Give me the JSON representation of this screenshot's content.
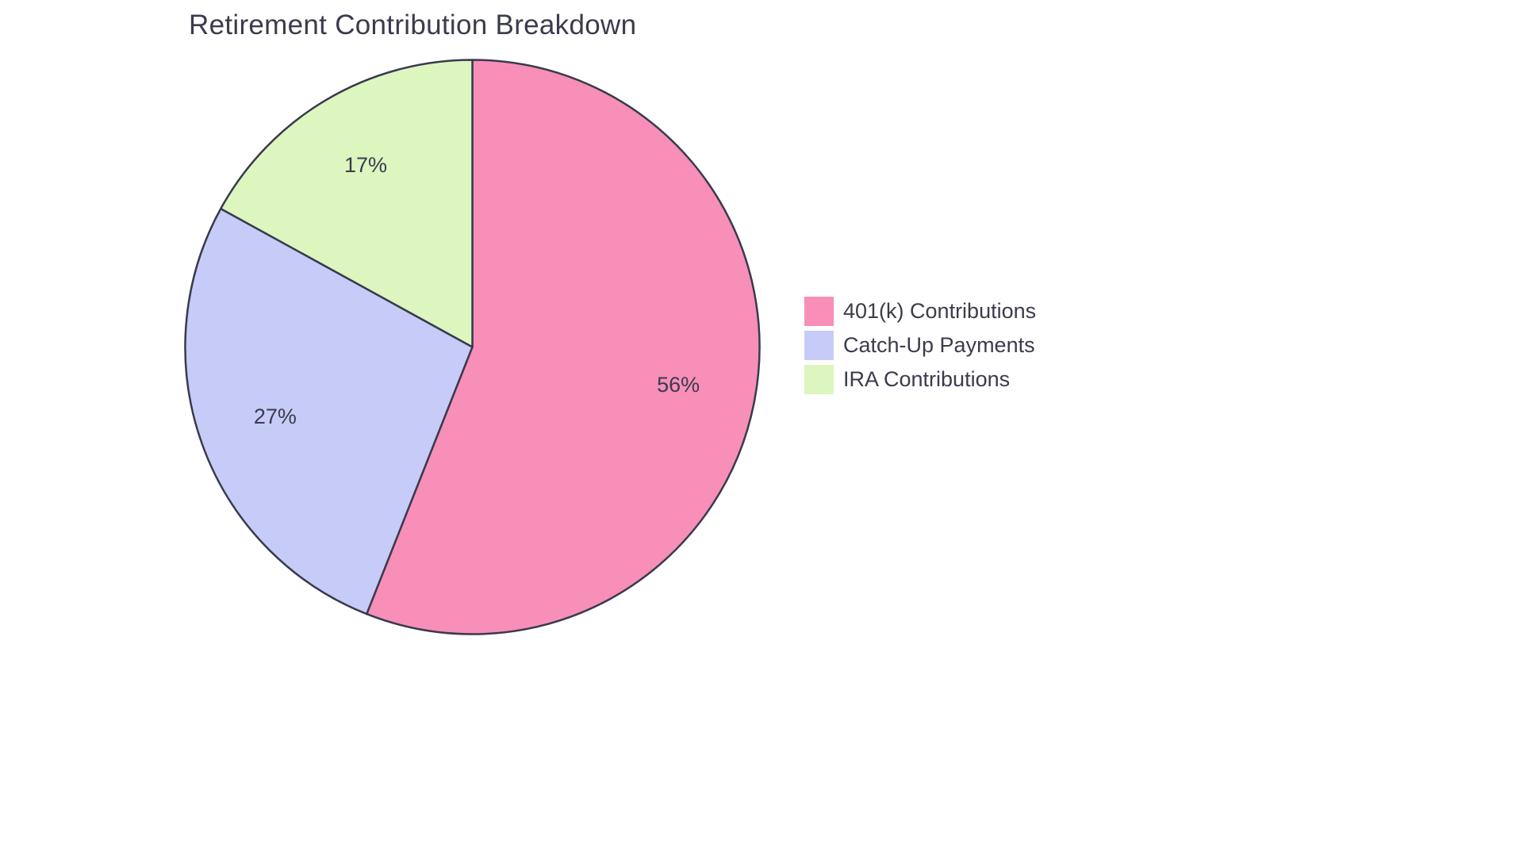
{
  "chart_data": {
    "type": "pie",
    "title": "Retirement Contribution Breakdown",
    "labels": [
      "401(k) Contributions",
      "Catch-Up Payments",
      "IRA Contributions"
    ],
    "values": [
      56,
      27,
      17
    ],
    "percent_labels": [
      "56%",
      "27%",
      "17%"
    ],
    "colors": [
      "#F78FB8",
      "#C7CBF7",
      "#DDF5BF"
    ],
    "stroke_color": "#3a3a4e",
    "legend_position": "right",
    "start_angle": "top",
    "direction": "clockwise"
  }
}
